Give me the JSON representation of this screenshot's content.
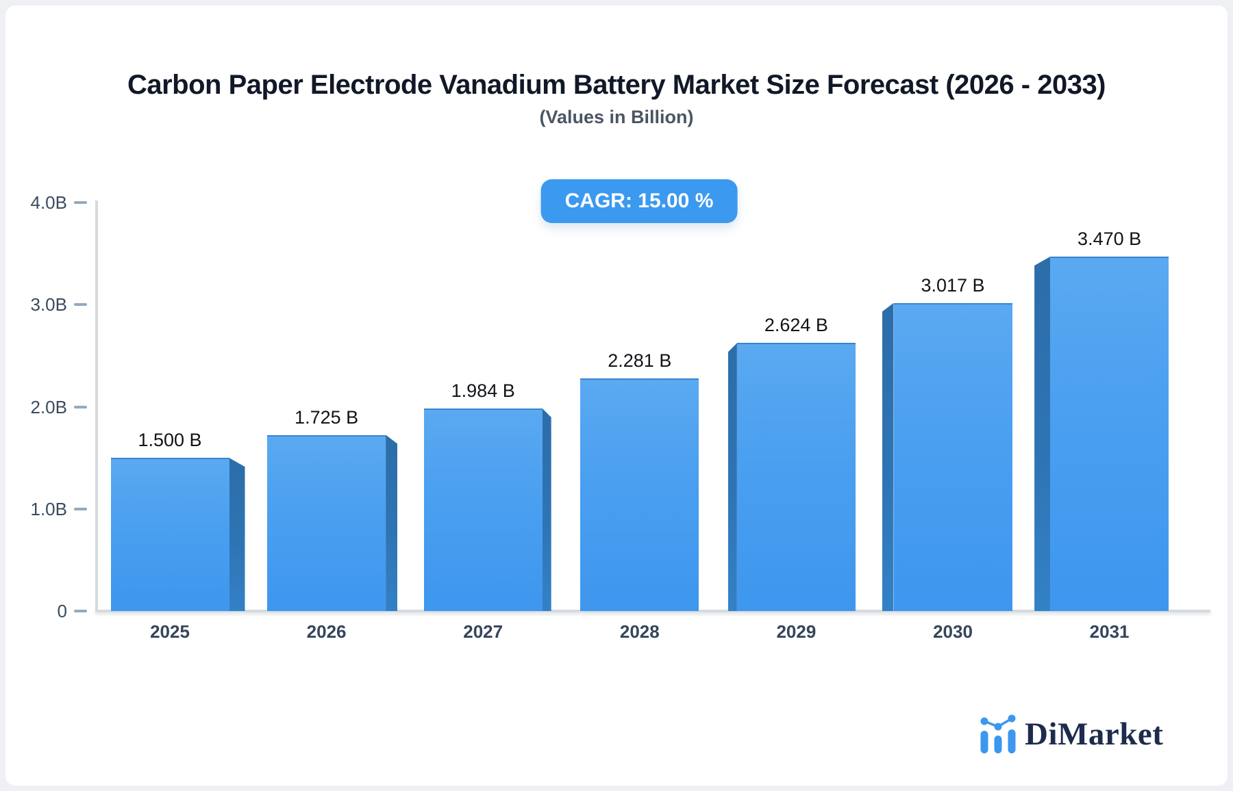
{
  "header": {
    "title": "Carbon Paper Electrode Vanadium Battery Market Size Forecast (2026 - 2033)",
    "subtitle": "(Values in Billion)"
  },
  "badge": {
    "label": "CAGR: 15.00 %",
    "background_color": "#3b99ef",
    "text_color": "#ffffff"
  },
  "footer_logo": {
    "text": "DiMarket",
    "icon": "mini-bar-chart",
    "text_color": "#1d2b4d",
    "accent_color": "#3b97ef"
  },
  "chart_data": {
    "type": "bar",
    "title": "Carbon Paper Electrode Vanadium Battery Market Size Forecast (2026 - 2033)",
    "subtitle": "(Values in Billion)",
    "categories": [
      "2025",
      "2026",
      "2027",
      "2028",
      "2029",
      "2030",
      "2031"
    ],
    "values": [
      1.5,
      1.725,
      1.984,
      2.281,
      2.624,
      3.017,
      3.47
    ],
    "value_labels": [
      "1.500 B",
      "1.725 B",
      "1.984 B",
      "2.281 B",
      "2.624 B",
      "3.017 B",
      "3.470 B"
    ],
    "annotations": [
      "CAGR: 15.00 %"
    ],
    "xlabel": "",
    "ylabel": "",
    "ylim": [
      0,
      4.0
    ],
    "y_tick_values": [
      4,
      3,
      2,
      1,
      0
    ],
    "y_tick_labels": [
      "4.0B",
      "3.0B",
      "2.0B",
      "1.0B",
      "0"
    ],
    "grid": false,
    "legend": null,
    "effect": "3d-perspective",
    "bar_face_color": "#4a9ff0",
    "bar_side_color": "#2e74b4"
  }
}
